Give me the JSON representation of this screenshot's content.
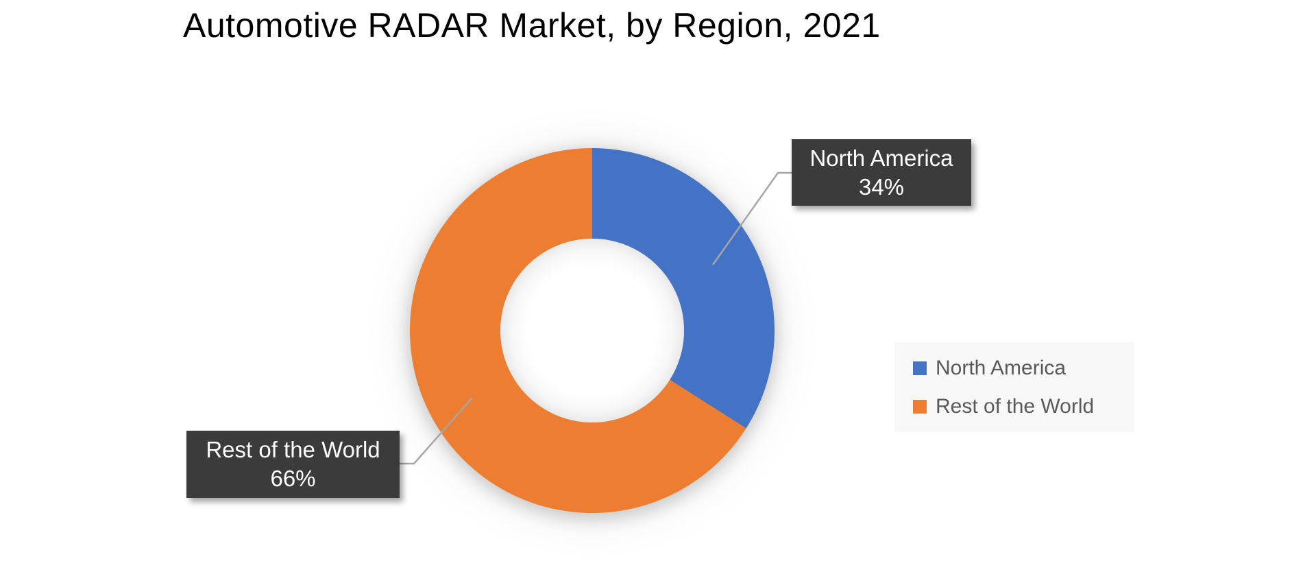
{
  "title": "Automotive RADAR Market, by Region, 2021",
  "chart_data": {
    "type": "pie",
    "subtype": "donut",
    "title": "Automotive RADAR Market, by Region, 2021",
    "categories": [
      "North America",
      "Rest of the World"
    ],
    "values": [
      34,
      66
    ],
    "unit": "%",
    "series_colors": [
      "#4472C4",
      "#ED7D31"
    ],
    "start_angle_deg": 0,
    "direction": "clockwise",
    "inner_radius_ratio": 0.505,
    "legend_position": "right",
    "data_labels": [
      "North America 34%",
      "Rest of the World 66%"
    ]
  },
  "callouts": [
    {
      "label": "North America",
      "value_text": "34%"
    },
    {
      "label": "Rest of the World",
      "value_text": "66%"
    }
  ],
  "legend": {
    "items": [
      {
        "label": "North America",
        "color": "#4472C4"
      },
      {
        "label": "Rest of the World",
        "color": "#ED7D31"
      }
    ]
  },
  "colors": {
    "background": "#FFFFFF",
    "title_text": "#000000",
    "slice_north_america": "#4472C4",
    "slice_rest_of_world": "#ED7D31",
    "callout_bg": "#3B3B3B",
    "callout_text": "#FFFFFF",
    "leader_line": "#A6A6A6",
    "legend_bg": "#F8F8F8",
    "legend_text": "#595959"
  }
}
